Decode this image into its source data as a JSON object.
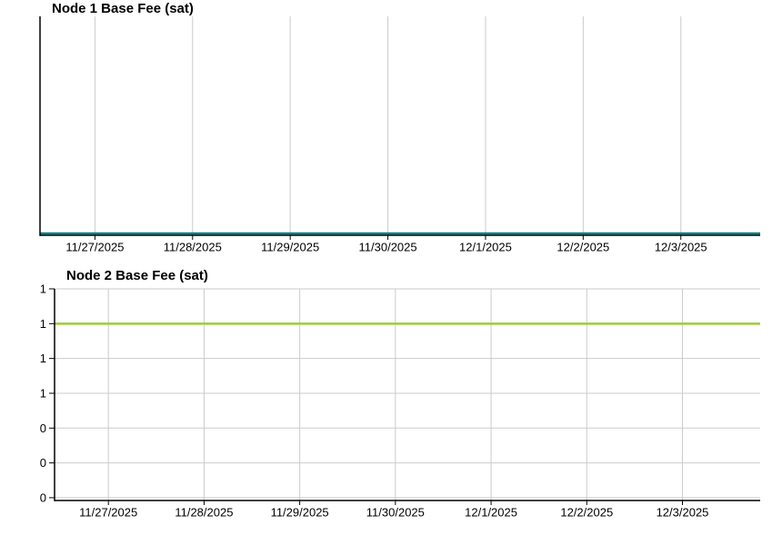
{
  "page": {
    "background": "#ffffff",
    "axis_color": "#000000",
    "grid_color": "#cbcbcb",
    "label_color": "#000000"
  },
  "chart_data": [
    {
      "type": "line",
      "title": "Node 1 Base Fee (sat)",
      "x_type": "time",
      "x_domain": [
        "2025-11-26T10:30:00",
        "2025-12-03T19:30:00"
      ],
      "x_ticks": [
        {
          "t": "2025-11-27T00:00:00",
          "label": "11/27/2025"
        },
        {
          "t": "2025-11-28T00:00:00",
          "label": "11/28/2025"
        },
        {
          "t": "2025-11-29T00:00:00",
          "label": "11/29/2025"
        },
        {
          "t": "2025-11-30T00:00:00",
          "label": "11/30/2025"
        },
        {
          "t": "2025-12-01T00:00:00",
          "label": "12/1/2025"
        },
        {
          "t": "2025-12-02T00:00:00",
          "label": "12/2/2025"
        },
        {
          "t": "2025-12-03T00:00:00",
          "label": "12/3/2025"
        }
      ],
      "ylabel": "",
      "xlabel": "",
      "y_domain": [
        -0.01,
        1.2
      ],
      "y_ticks": [],
      "grid": {
        "vertical": true,
        "horizontal": false
      },
      "legend": "none",
      "series": [
        {
          "name": "Node 1 Base Fee",
          "color": "#008080",
          "constant_value": 0
        }
      ]
    },
    {
      "type": "line",
      "title": "Node 2 Base Fee (sat)",
      "x_type": "time",
      "x_domain": [
        "2025-11-26T10:30:00",
        "2025-12-03T19:30:00"
      ],
      "x_ticks": [
        {
          "t": "2025-11-27T00:00:00",
          "label": "11/27/2025"
        },
        {
          "t": "2025-11-28T00:00:00",
          "label": "11/28/2025"
        },
        {
          "t": "2025-11-29T00:00:00",
          "label": "11/29/2025"
        },
        {
          "t": "2025-11-30T00:00:00",
          "label": "11/30/2025"
        },
        {
          "t": "2025-12-01T00:00:00",
          "label": "12/1/2025"
        },
        {
          "t": "2025-12-02T00:00:00",
          "label": "12/2/2025"
        },
        {
          "t": "2025-12-03T00:00:00",
          "label": "12/3/2025"
        }
      ],
      "ylabel": "",
      "xlabel": "",
      "y_domain": [
        -0.016,
        1.2
      ],
      "y_ticks": [
        {
          "value": 1.2,
          "label": "1"
        },
        {
          "value": 1.0,
          "label": "1"
        },
        {
          "value": 0.8,
          "label": "1"
        },
        {
          "value": 0.6,
          "label": "1"
        },
        {
          "value": 0.4,
          "label": "0"
        },
        {
          "value": 0.2,
          "label": "0"
        },
        {
          "value": 0.0,
          "label": "0"
        }
      ],
      "grid": {
        "vertical": true,
        "horizontal": true
      },
      "legend": "none",
      "series": [
        {
          "name": "Node 2 Base Fee",
          "color": "#9acd32",
          "constant_value": 1
        }
      ]
    }
  ]
}
